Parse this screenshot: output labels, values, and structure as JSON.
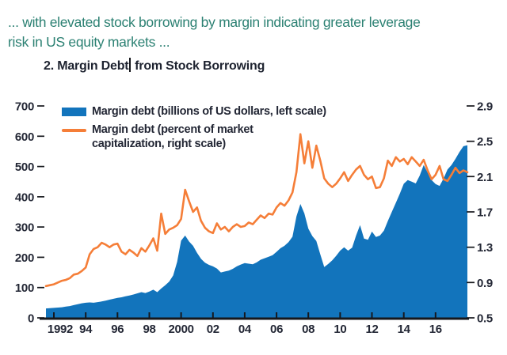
{
  "caption": {
    "line1": "... with elevated stock borrowing by margin indicating greater leverage",
    "line2": "risk in US equity markets ..."
  },
  "title": {
    "part1": "2. Margin Debt",
    "part2": " from Stock Borrowing"
  },
  "legend": {
    "series1": "Margin debt (billions of US dollars, left scale)",
    "series2_line1": "Margin debt (percent of market",
    "series2_line2": "capitalization, right scale)"
  },
  "colors": {
    "blue": "#1274bc",
    "orange": "#f57e38",
    "caption_text": "#2c8173",
    "title_text": "#1e2330",
    "axis_text": "#232735",
    "axis_line": "#16181d"
  },
  "chart_data": {
    "type": "area",
    "x_start": 1991.5,
    "x_step": 0.25,
    "x_end": 2018.0,
    "series": [
      {
        "name": "Margin debt (billions of US dollars, left scale)",
        "axis": "left",
        "style": "area",
        "color": "#1274bc",
        "values": [
          31,
          32,
          33,
          34,
          35,
          37,
          39,
          42,
          45,
          48,
          50,
          51,
          50,
          52,
          54,
          57,
          60,
          63,
          66,
          68,
          71,
          74,
          77,
          81,
          85,
          82,
          87,
          93,
          85,
          97,
          108,
          120,
          140,
          185,
          255,
          272,
          252,
          238,
          215,
          195,
          182,
          175,
          170,
          163,
          150,
          153,
          156,
          162,
          170,
          176,
          181,
          179,
          177,
          183,
          192,
          197,
          202,
          207,
          218,
          230,
          238,
          250,
          268,
          335,
          376,
          345,
          295,
          270,
          254,
          210,
          168,
          178,
          190,
          205,
          222,
          233,
          222,
          232,
          272,
          306,
          262,
          258,
          285,
          267,
          272,
          288,
          320,
          350,
          380,
          410,
          443,
          455,
          450,
          444,
          470,
          505,
          480,
          455,
          442,
          436,
          460,
          490,
          505,
          525,
          548,
          567,
          570
        ]
      },
      {
        "name": "Margin debt (percent of market capitalization, right scale)",
        "axis": "right",
        "style": "line",
        "color": "#f57e38",
        "values": [
          0.86,
          0.87,
          0.88,
          0.9,
          0.92,
          0.93,
          0.95,
          0.99,
          1.0,
          1.03,
          1.07,
          1.22,
          1.28,
          1.3,
          1.35,
          1.33,
          1.3,
          1.33,
          1.34,
          1.25,
          1.22,
          1.27,
          1.24,
          1.2,
          1.29,
          1.25,
          1.32,
          1.4,
          1.26,
          1.68,
          1.45,
          1.5,
          1.52,
          1.55,
          1.62,
          1.95,
          1.82,
          1.7,
          1.75,
          1.6,
          1.52,
          1.48,
          1.46,
          1.57,
          1.5,
          1.53,
          1.48,
          1.53,
          1.56,
          1.53,
          1.54,
          1.58,
          1.56,
          1.61,
          1.66,
          1.63,
          1.68,
          1.67,
          1.75,
          1.8,
          1.77,
          1.83,
          1.92,
          2.15,
          2.58,
          2.25,
          2.5,
          2.2,
          2.45,
          2.28,
          2.08,
          2.02,
          1.98,
          2.02,
          2.08,
          2.15,
          2.05,
          2.12,
          2.18,
          2.22,
          2.12,
          2.07,
          2.1,
          1.97,
          1.98,
          2.08,
          2.28,
          2.22,
          2.32,
          2.27,
          2.3,
          2.24,
          2.32,
          2.27,
          2.22,
          2.29,
          2.17,
          2.07,
          2.12,
          2.22,
          2.07,
          2.05,
          2.12,
          2.2,
          2.14,
          2.17,
          2.15
        ]
      }
    ],
    "left_axis": {
      "min": 0,
      "max": 700,
      "tick_step": 100,
      "tick_labels": [
        "0",
        "100",
        "200",
        "300",
        "400",
        "500",
        "600",
        "700"
      ]
    },
    "right_axis": {
      "min": 0.5,
      "max": 2.9,
      "tick_step": 0.4,
      "tick_labels": [
        "0.5",
        "0.9",
        "1.3",
        "1.7",
        "2.1",
        "2.5",
        "2.9"
      ]
    },
    "x_axis": {
      "tick_years": [
        1992,
        1994,
        1996,
        1998,
        2000,
        2002,
        2004,
        2006,
        2008,
        2010,
        2012,
        2014,
        2016
      ],
      "tick_labels": [
        "1992",
        "94",
        "96",
        "98",
        "2000",
        "02",
        "04",
        "06",
        "08",
        "10",
        "12",
        "14",
        "16"
      ]
    }
  }
}
